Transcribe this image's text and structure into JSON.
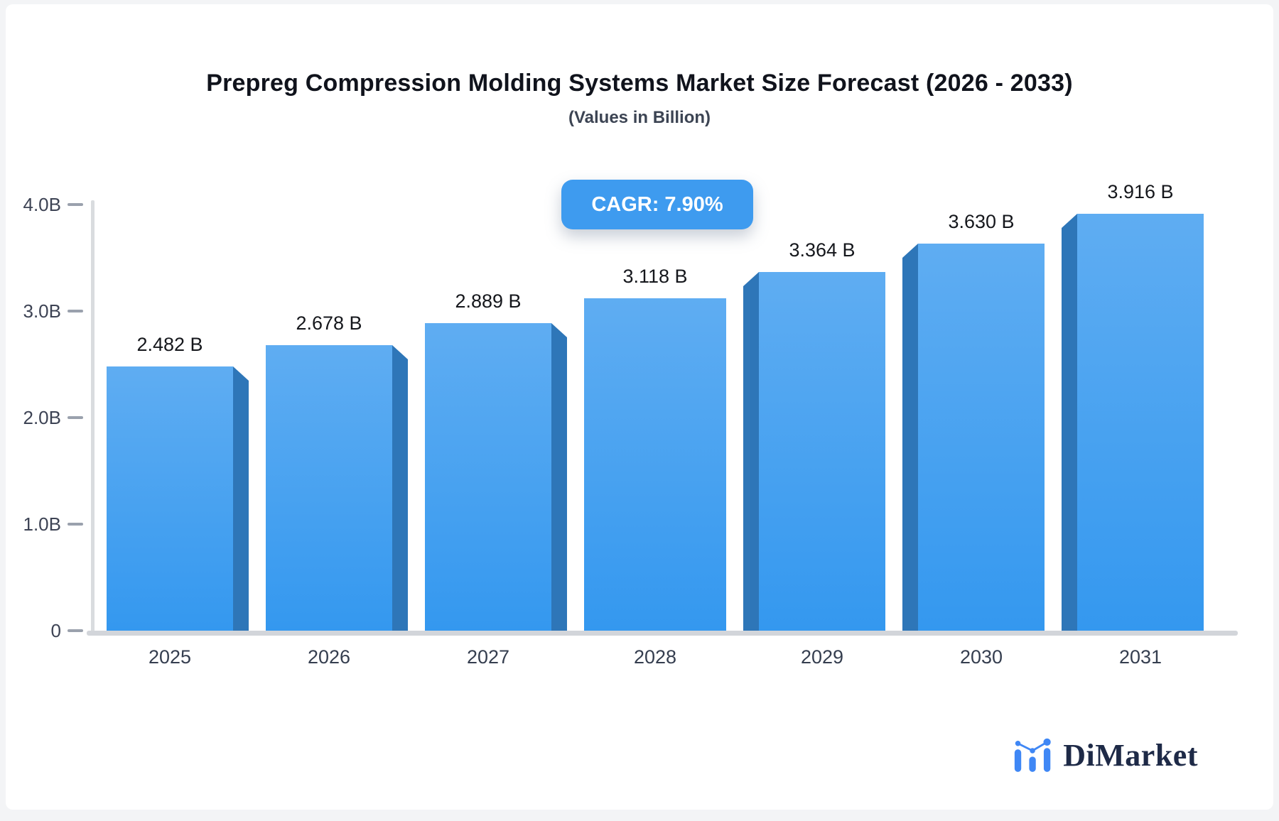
{
  "header": {
    "title": "Prepreg Compression Molding Systems Market Size Forecast (2026 - 2033)",
    "subtitle": "(Values in Billion)"
  },
  "badge": {
    "label": "CAGR: 7.90%",
    "bg": "#3e9bef"
  },
  "chart_data": {
    "type": "bar",
    "title": "Prepreg Compression Molding Systems Market Size Forecast (2026 - 2033)",
    "subtitle": "(Values in Billion)",
    "categories": [
      "2025",
      "2026",
      "2027",
      "2028",
      "2029",
      "2030",
      "2031"
    ],
    "values": [
      2.482,
      2.678,
      2.889,
      3.118,
      3.364,
      3.63,
      3.916
    ],
    "value_labels": [
      "2.482 B",
      "2.678 B",
      "2.889 B",
      "3.118 B",
      "3.364 B",
      "3.630 B",
      "3.916 B"
    ],
    "y_ticks": [
      {
        "label": "4.0B",
        "value": 4.0
      },
      {
        "label": "3.0B",
        "value": 3.0
      },
      {
        "label": "2.0B",
        "value": 2.0
      },
      {
        "label": "1.0B",
        "value": 1.0
      },
      {
        "label": "0",
        "value": 0.0
      }
    ],
    "ylim": [
      0,
      4.0
    ],
    "xlabel": "",
    "ylabel": "",
    "legend": "none",
    "grid": "off",
    "annotation": "CAGR: 7.90%",
    "colors": {
      "bar_top": "#5fadf2",
      "bar_bottom": "#3498ef",
      "bar_side": "#2e76b8",
      "axis_line": "#d9dcdf",
      "baseline": "#d2d5da",
      "tick_dash": "#9aa1ad",
      "tick_text": "#3d4354",
      "xlabel_text": "#353e4f",
      "value_text": "#15171c"
    }
  },
  "logo": {
    "text": "DiMarket",
    "icon": "mini-bar-chart-icon",
    "accent": "#3f87f5"
  }
}
